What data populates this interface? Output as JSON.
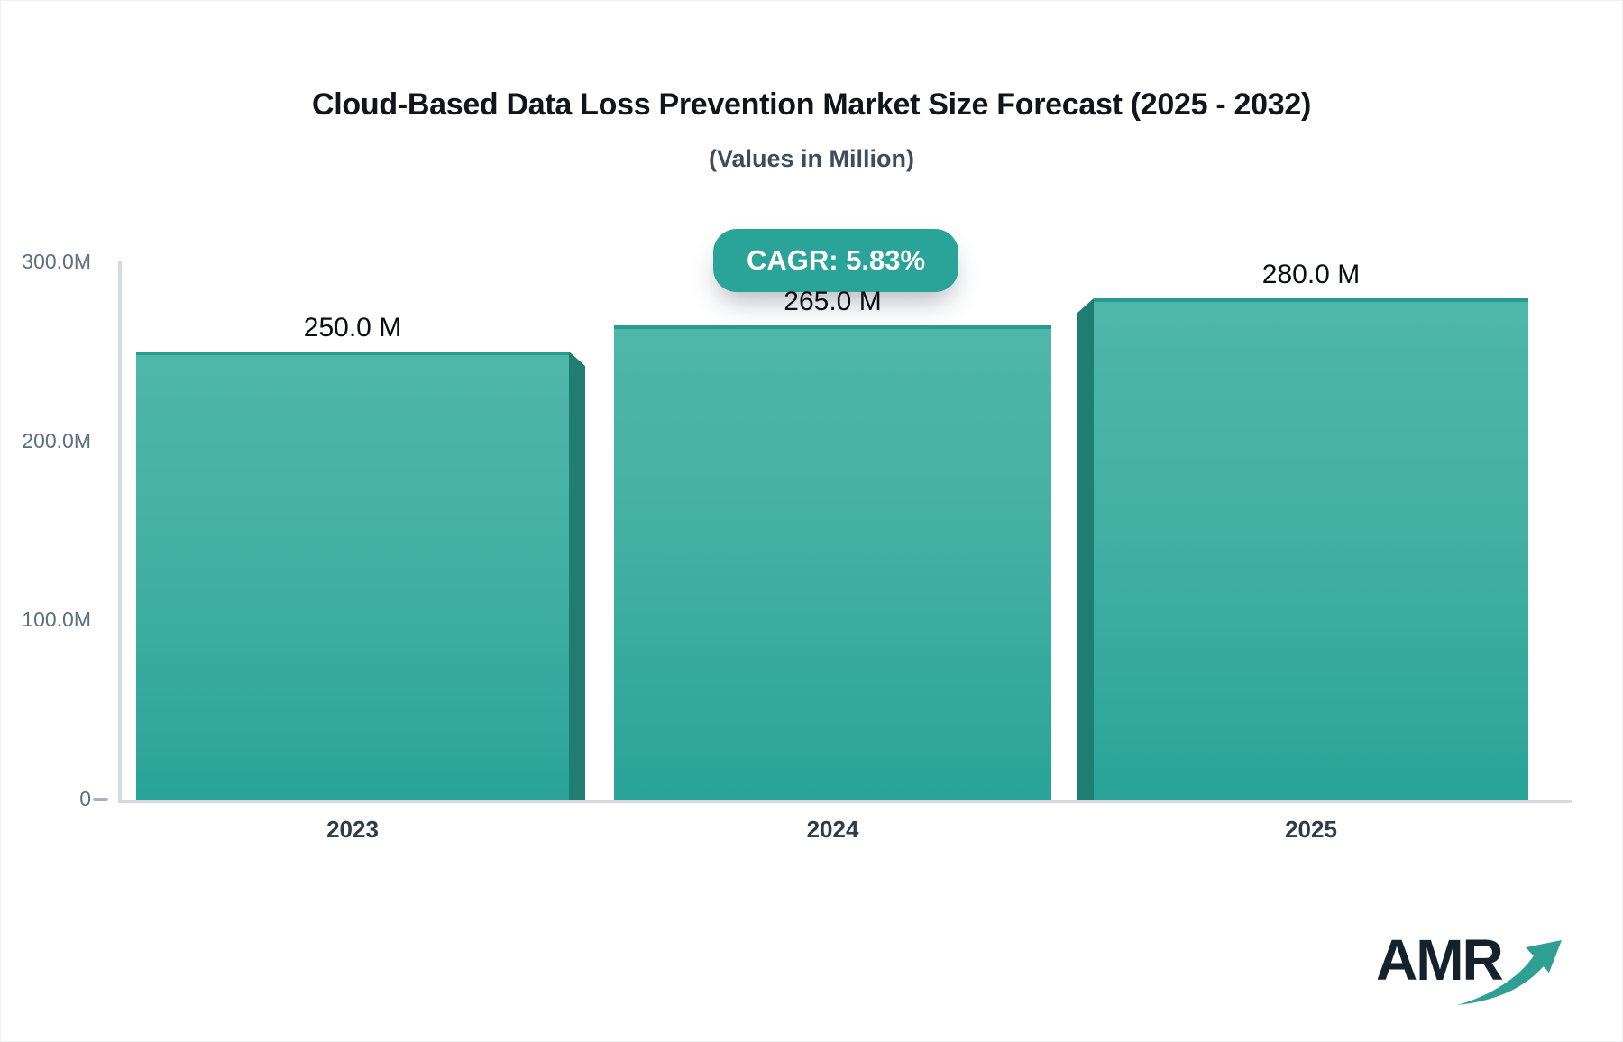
{
  "title": "Cloud-Based Data Loss Prevention Market Size Forecast (2025 - 2032)",
  "subtitle": "(Values in Million)",
  "cagr_badge": "CAGR: 5.83%",
  "logo": {
    "text": "AMR",
    "arrow_icon": "growth-arrow-icon"
  },
  "colors": {
    "bar_top": "#4fb6aa",
    "bar_bottom": "#29a498",
    "bar_edge": "#2b9a8e",
    "bar_side": "#1f7d72",
    "badge_bg": "#2aa399",
    "axis": "#d6d9de",
    "ytick_text": "#5d6e80",
    "xtick_text": "#2f3b49",
    "title_text": "#10151c",
    "subtitle_text": "#3e4c5b",
    "logo_text": "#14222c",
    "logo_arrow": "#2f9e93"
  },
  "chart_data": {
    "type": "bar",
    "title": "Cloud-Based Data Loss Prevention Market Size Forecast (2025 - 2032)",
    "subtitle": "(Values in Million)",
    "annotation": "CAGR: 5.83%",
    "categories": [
      "2023",
      "2024",
      "2025"
    ],
    "values": [
      250.0,
      265.0,
      280.0
    ],
    "value_labels": [
      "250.0 M",
      "265.0 M",
      "280.0 M"
    ],
    "bar_sides": [
      "right",
      "none",
      "left"
    ],
    "xlabel": "",
    "ylabel": "",
    "ylim": [
      0,
      300
    ],
    "yticks": [
      {
        "value": 300,
        "label": "300.0M",
        "dash": false
      },
      {
        "value": 200,
        "label": "200.0M",
        "dash": false
      },
      {
        "value": 100,
        "label": "100.0M",
        "dash": false
      },
      {
        "value": 0,
        "label": "0",
        "dash": true
      }
    ],
    "grid": false,
    "legend": "none"
  }
}
